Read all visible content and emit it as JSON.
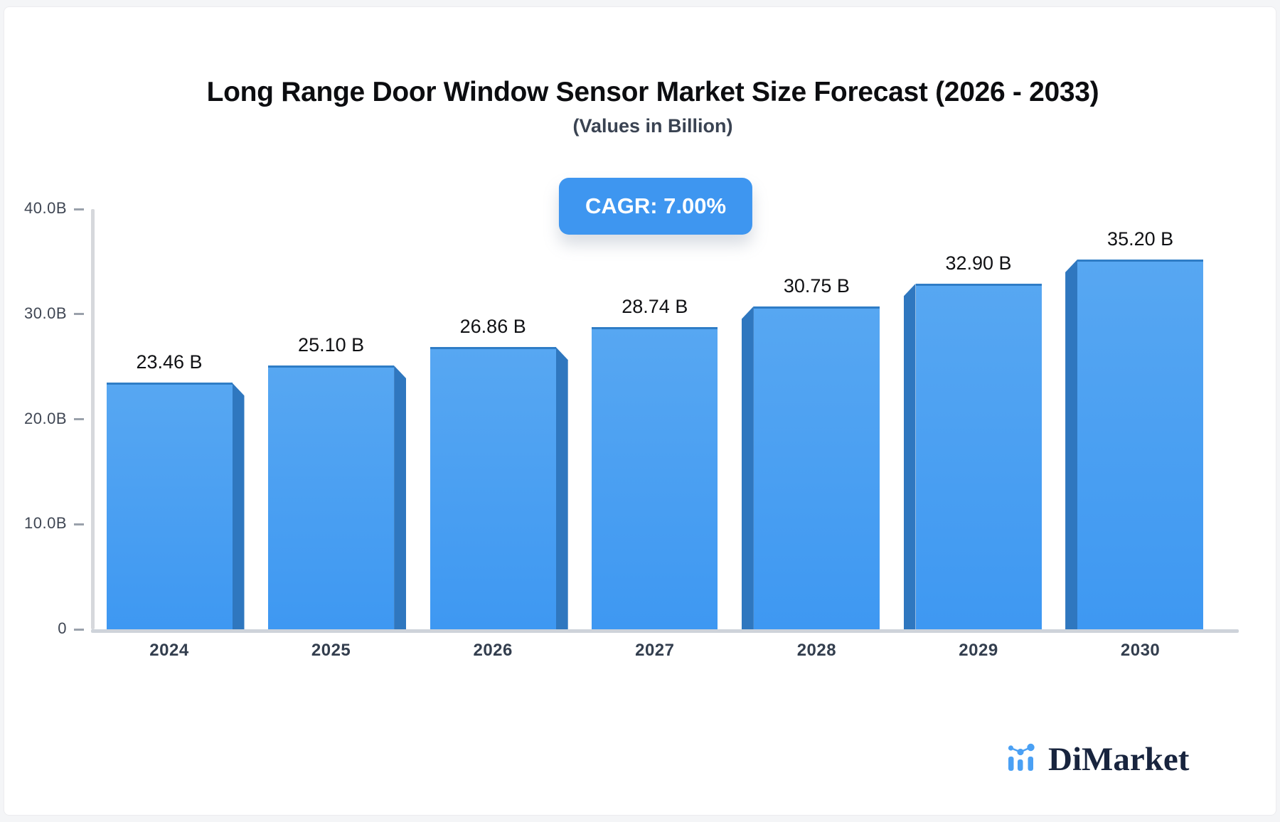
{
  "header": {
    "title": "Long Range Door Window Sensor Market Size Forecast (2026 - 2033)",
    "subtitle": "(Values in Billion)",
    "badge": "CAGR: 7.00%"
  },
  "brand": {
    "name": "DiMarket",
    "icon": "bar-line-chart-logo-icon"
  },
  "colors": {
    "badge_bg": "#3e96f0",
    "bar_top": "#57a7f2",
    "bar_bottom": "#3e98f2",
    "bar_side": "#2f77bf",
    "bar_top_border": "#2f7dc6",
    "axis_line": "#d6d8dc",
    "baseline": "#ced3da",
    "tick": "#9aa1ab",
    "logo_blue": "#4aa0f4",
    "logo_navy": "#18243e"
  },
  "chart_data": {
    "type": "bar",
    "title": "Long Range Door Window Sensor Market Size Forecast (2026 - 2033)",
    "subtitle": "(Values in Billion)",
    "cagr": "7.00%",
    "categories": [
      "2024",
      "2025",
      "2026",
      "2027",
      "2028",
      "2029",
      "2030"
    ],
    "values": [
      23.46,
      25.1,
      26.86,
      28.74,
      30.75,
      32.9,
      35.2
    ],
    "value_labels": [
      "23.46 B",
      "25.10 B",
      "26.86 B",
      "28.74 B",
      "30.75 B",
      "32.90 B",
      "35.20 B"
    ],
    "y_ticks": [
      {
        "value": 0,
        "label": "0"
      },
      {
        "value": 10,
        "label": "10.0B"
      },
      {
        "value": 20,
        "label": "20.0B"
      },
      {
        "value": 30,
        "label": "30.0B"
      },
      {
        "value": 40,
        "label": "40.0B"
      }
    ],
    "ylim": [
      0,
      40
    ],
    "xlabel": "",
    "ylabel": "",
    "grid": false,
    "legend": false
  }
}
